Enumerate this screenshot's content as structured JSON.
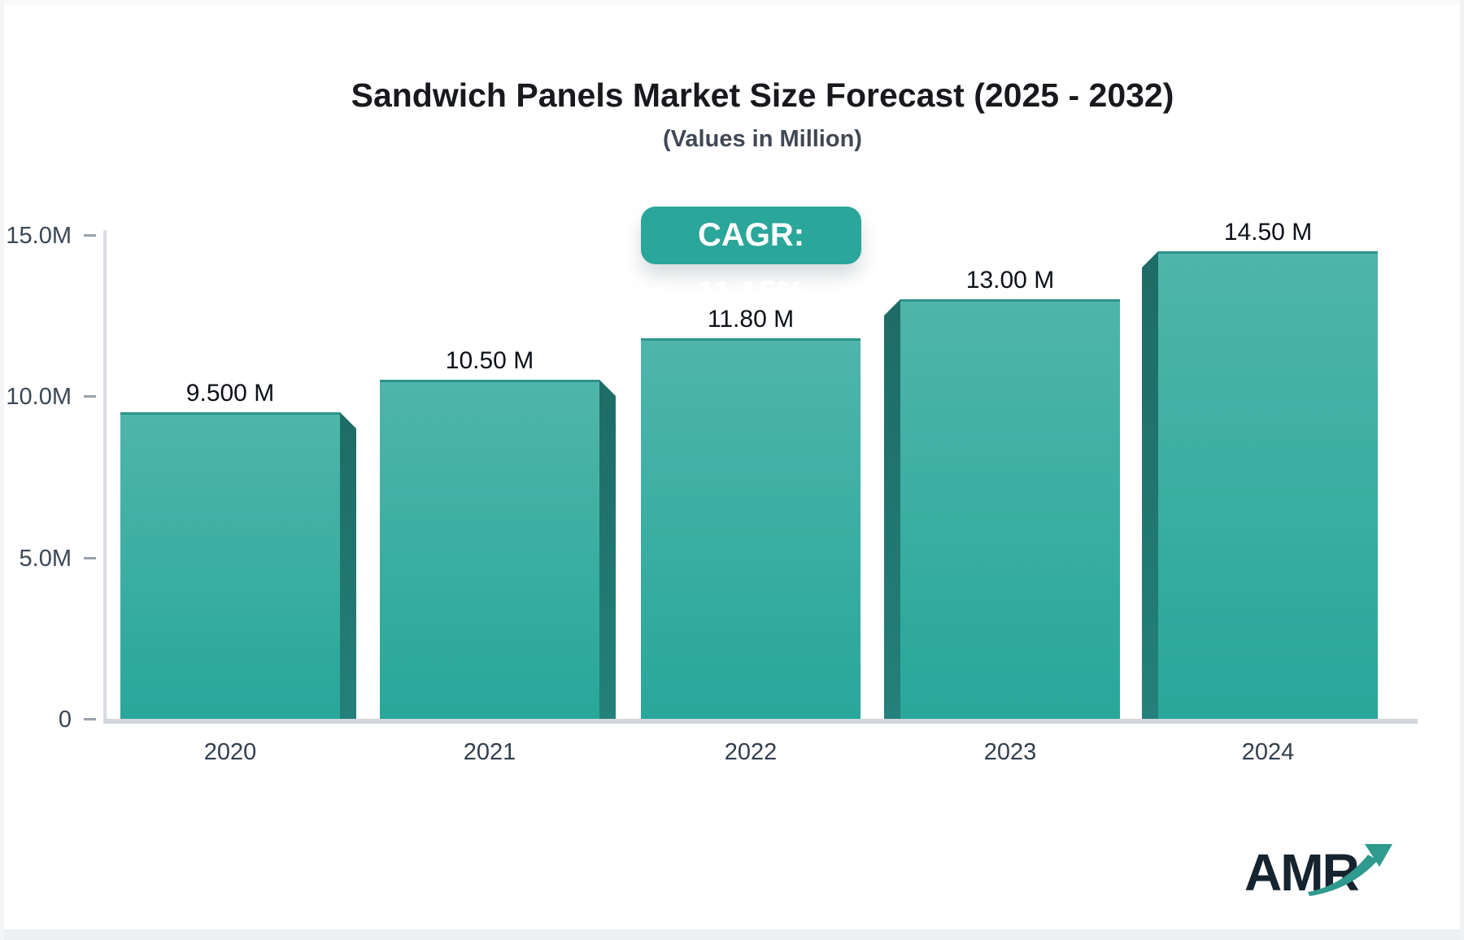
{
  "chart_data": {
    "type": "bar",
    "title": "Sandwich Panels Market Size Forecast (2025 - 2032)",
    "subtitle": "(Values in Million)",
    "annotation": "CAGR: 11.15%",
    "unit": "Million",
    "categories": [
      "2020",
      "2021",
      "2022",
      "2023",
      "2024"
    ],
    "values": [
      9.5,
      10.5,
      11.8,
      13.0,
      14.5
    ],
    "value_labels": [
      "9.500 M",
      "10.50 M",
      "11.80 M",
      "13.00 M",
      "14.50 M"
    ],
    "ylim": [
      0,
      15
    ],
    "y_ticks": [
      {
        "label": "15.0M",
        "value": 15
      },
      {
        "label": "10.0M",
        "value": 10
      },
      {
        "label": "5.0M",
        "value": 5
      },
      {
        "label": "0",
        "value": 0
      }
    ],
    "grid": false,
    "legend": "none",
    "colors": {
      "bar_face_top": "#4fb5ab",
      "bar_face_bottom": "#28a79a",
      "bar_cap": "#2d948b",
      "bar_side_top": "#1d6c65",
      "bar_side_bottom": "#24807a",
      "badge_bg": "#2ba69a",
      "badge_text": "#ffffff",
      "axis_line": "#d8dbdf",
      "tick_dash": "#99a2ac",
      "tick_label": "#3c4755",
      "value_label": "#0d1116",
      "category_label": "#333f4d"
    }
  },
  "branding": {
    "name": "AMR",
    "text_color": "#16242f",
    "arrow_color": "#2f9a8e"
  }
}
